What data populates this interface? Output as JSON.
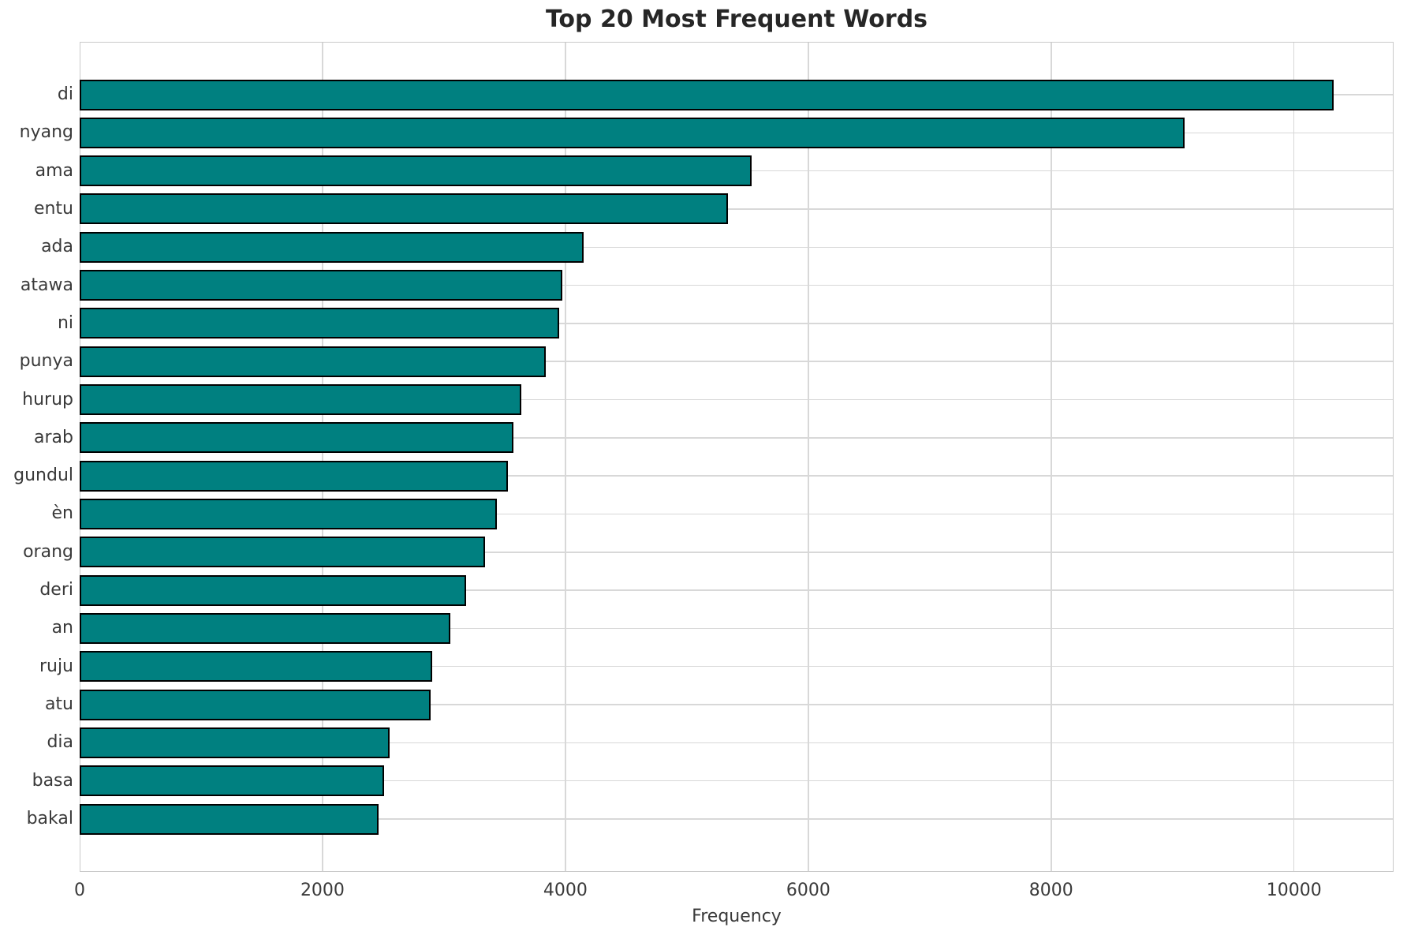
{
  "chart_data": {
    "type": "bar",
    "orientation": "horizontal",
    "title": "Top 20 Most Frequent Words",
    "xlabel": "Frequency",
    "ylabel": "",
    "categories": [
      "di",
      "nyang",
      "ama",
      "entu",
      "ada",
      "atawa",
      "ni",
      "punya",
      "hurup",
      "arab",
      "gundul",
      "èn",
      "orang",
      "deri",
      "an",
      "ruju",
      "atu",
      "dia",
      "basa",
      "bakal"
    ],
    "values": [
      10325,
      9100,
      5535,
      5340,
      4150,
      3975,
      3950,
      3840,
      3640,
      3575,
      3525,
      3435,
      3340,
      3180,
      3050,
      2900,
      2890,
      2555,
      2505,
      2460
    ],
    "x_ticks": [
      0,
      2000,
      4000,
      6000,
      8000,
      10000
    ],
    "xlim": [
      0,
      10820
    ],
    "grid": true,
    "legend": false,
    "bar_color": "#008080",
    "bar_edge_color": "#000000",
    "grid_color": "#d8d8d8",
    "spine_color": "#c9c9c9",
    "text_color": "#3a3a3a",
    "title_color": "#262626",
    "background_color": "#ffffff"
  }
}
